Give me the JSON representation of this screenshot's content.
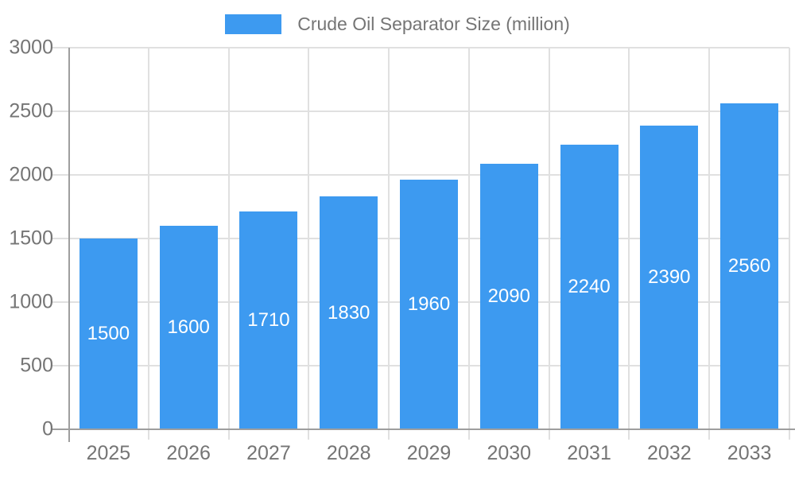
{
  "chart_data": {
    "type": "bar",
    "title": "Crude Oil Separator Size (million)",
    "categories": [
      "2025",
      "2026",
      "2027",
      "2028",
      "2029",
      "2030",
      "2031",
      "2032",
      "2033"
    ],
    "values": [
      1500,
      1600,
      1710,
      1830,
      1960,
      2090,
      2240,
      2390,
      2560
    ],
    "xlabel": "",
    "ylabel": "",
    "ylim": [
      0,
      3000
    ],
    "yticks": [
      0,
      500,
      1000,
      1500,
      2000,
      2500,
      3000
    ],
    "grid": true,
    "legend_position": "top-center",
    "bar_labels_visible": true,
    "colors": {
      "bar": "#3D9AF0",
      "bar_label": "#FFFFFF",
      "axis_text": "#757575",
      "legend_text": "#757575",
      "grid_line": "#E0E0E0",
      "axis_line": "#9E9E9E",
      "background": "#FFFFFF"
    }
  }
}
